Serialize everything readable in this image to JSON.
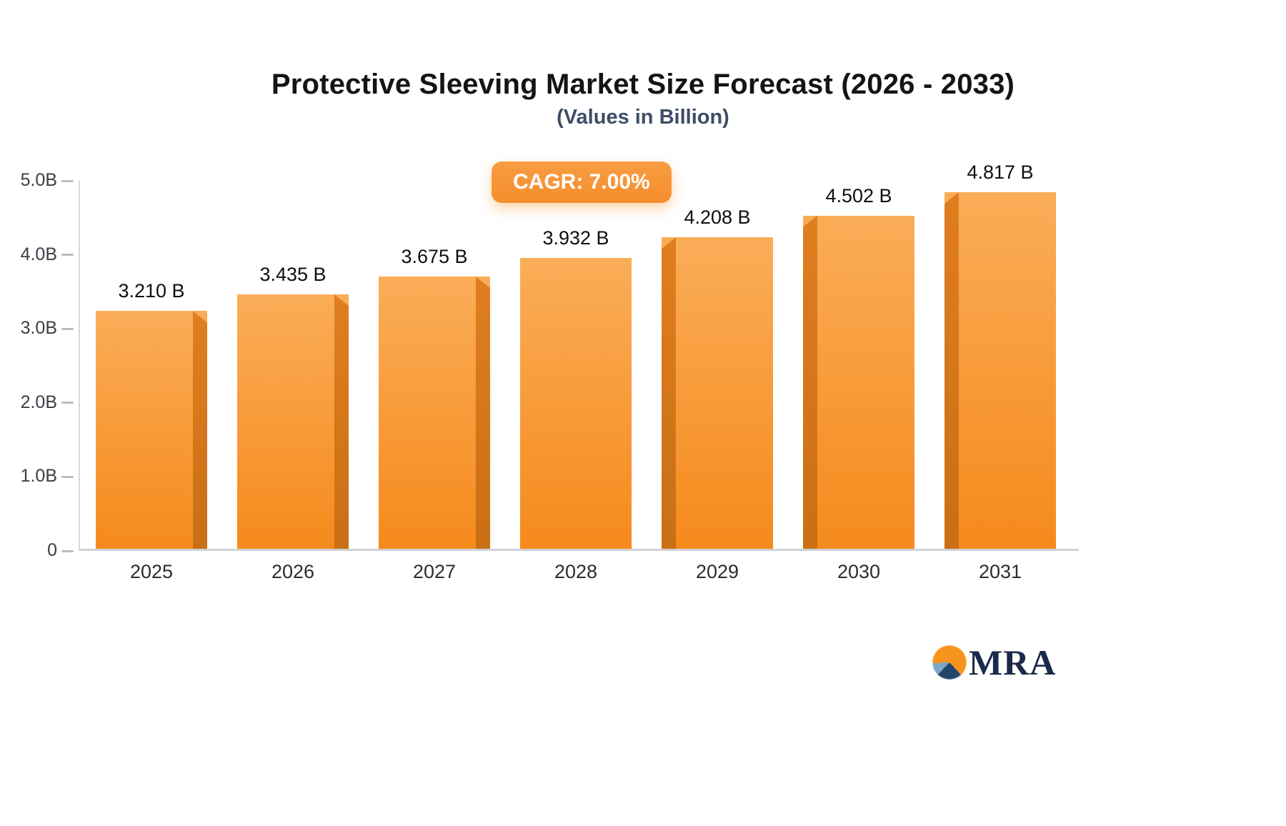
{
  "chart_data": {
    "type": "bar",
    "title": "Protective Sleeving Market Size Forecast (2026 - 2033)",
    "subtitle": "(Values in Billion)",
    "cagr_badge": "CAGR: 7.00%",
    "categories": [
      "2025",
      "2026",
      "2027",
      "2028",
      "2029",
      "2030",
      "2031"
    ],
    "values": [
      3.21,
      3.435,
      3.675,
      3.932,
      4.208,
      4.502,
      4.817
    ],
    "value_labels": [
      "3.210 B",
      "3.435 B",
      "3.675 B",
      "3.932 B",
      "4.208 B",
      "4.502 B",
      "4.817 B"
    ],
    "ylim": [
      0,
      5
    ],
    "ytick_values": [
      0,
      1,
      2,
      3,
      4,
      5
    ],
    "ytick_labels": [
      "0",
      "1.0B",
      "2.0B",
      "3.0B",
      "4.0B",
      "5.0B"
    ],
    "bar_shade_sides": [
      "right",
      "right",
      "right",
      "none",
      "left",
      "left",
      "left"
    ],
    "legend_position": "none",
    "grid": "off",
    "colors": {
      "bar_top": "#FAAD58",
      "bar_bottom": "#F68A1C",
      "bar_shade_top": "#E07E1F",
      "bar_shade_bottom": "#C96F15",
      "badge": "#F7953A",
      "axis": "#CFD2D6",
      "text": "#111111"
    }
  },
  "logo": {
    "text": "MRA"
  }
}
